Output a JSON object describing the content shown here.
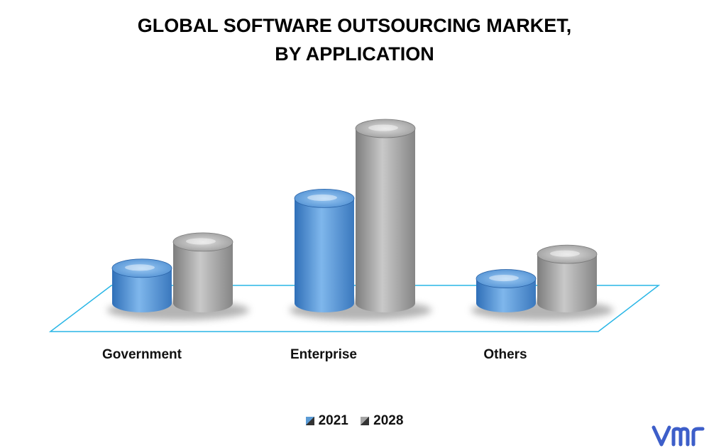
{
  "chart_data": {
    "type": "bar",
    "title_lines": [
      "GLOBAL SOFTWARE OUTSOURCING MARKET,",
      "BY APPLICATION"
    ],
    "categories": [
      "Government",
      "Enterprise",
      "Others"
    ],
    "series": [
      {
        "name": "2021",
        "values": [
          20,
          60,
          14
        ],
        "color": "#5b9bd5"
      },
      {
        "name": "2028",
        "values": [
          35,
          100,
          28
        ],
        "color": "#a5a5a5"
      }
    ],
    "ylim": [
      0,
      100
    ],
    "grid": false,
    "legend_position": "bottom"
  },
  "colors": {
    "floor_outline": "#29b6e6",
    "shadow": "#777777",
    "logo": "#3d5ec9"
  },
  "logo": {
    "icon": "vmr-logo"
  }
}
